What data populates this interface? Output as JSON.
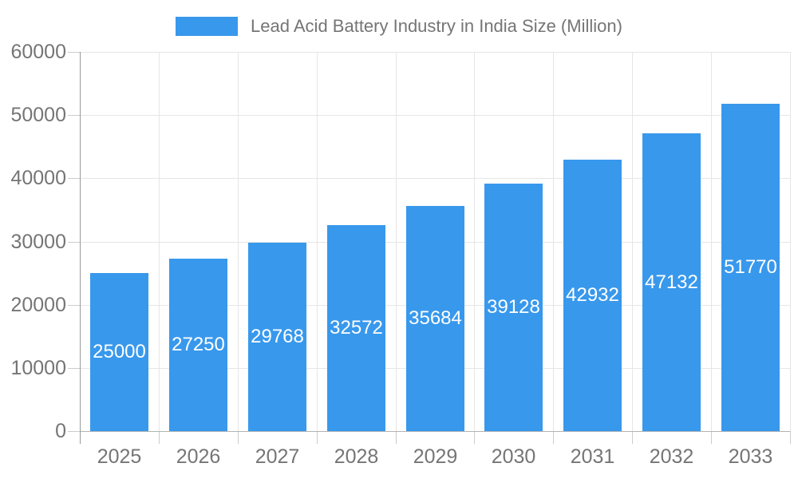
{
  "legend": {
    "label": "Lead Acid Battery Industry in India Size (Million)"
  },
  "chart_data": {
    "type": "bar",
    "title": "",
    "xlabel": "",
    "ylabel": "",
    "categories": [
      "2025",
      "2026",
      "2027",
      "2028",
      "2029",
      "2030",
      "2031",
      "2032",
      "2033"
    ],
    "series": [
      {
        "name": "Lead Acid Battery Industry in India Size (Million)",
        "values": [
          25000,
          27250,
          29768,
          32572,
          35684,
          39128,
          42932,
          47132,
          51770
        ]
      }
    ],
    "value_labels": [
      "25000",
      "27250",
      "29768",
      "32572",
      "35684",
      "39128",
      "42932",
      "47132",
      "51770"
    ],
    "ylim": [
      0,
      60000
    ],
    "yticks": [
      0,
      10000,
      20000,
      30000,
      40000,
      50000,
      60000
    ],
    "grid": true,
    "legend_position": "top"
  },
  "colors": {
    "bar": "#3898EC",
    "value_label": "#ffffff",
    "axis_text": "#757575",
    "gridline": "#e6e6e6",
    "baseline": "#b3b3b3",
    "y_axis_line": "#999999",
    "tick": "#cccccc",
    "background": "#ffffff"
  }
}
